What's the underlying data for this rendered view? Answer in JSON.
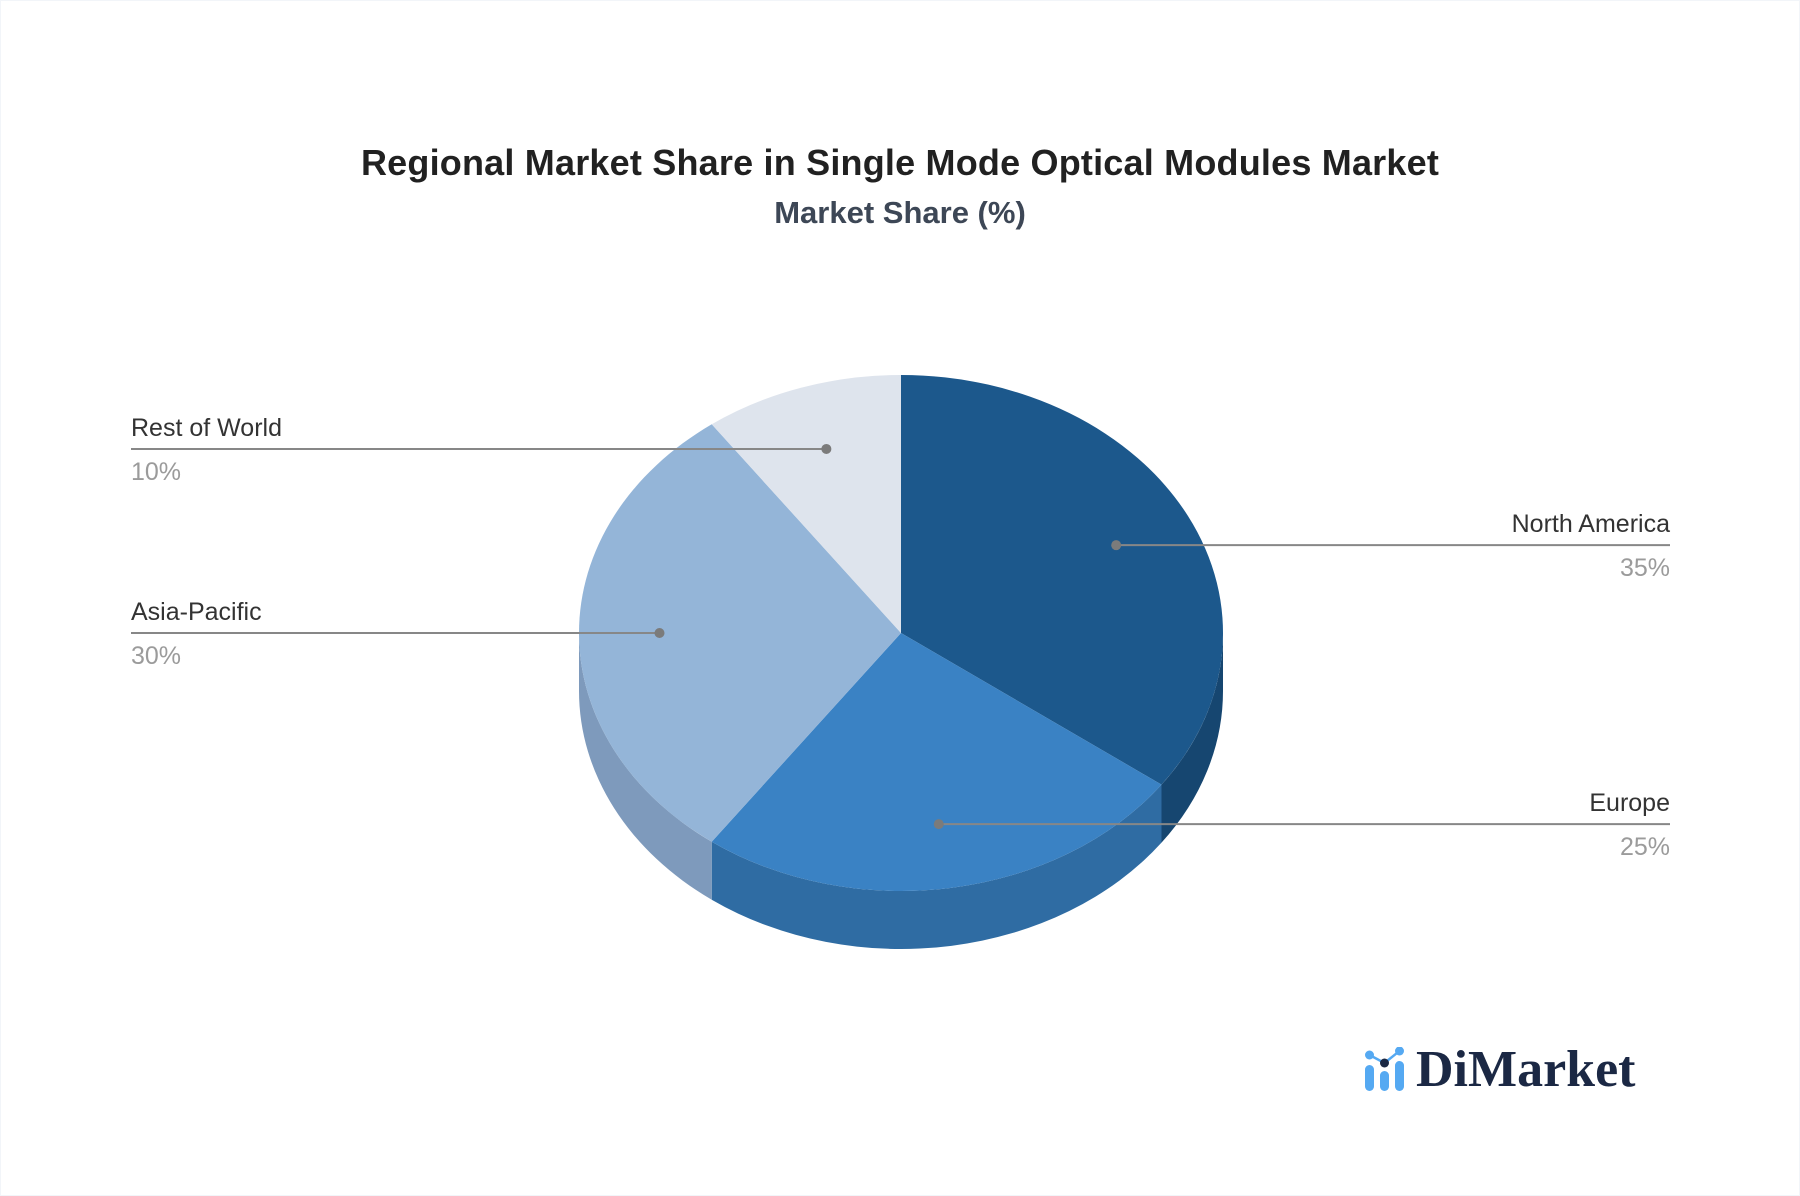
{
  "header": {
    "title": "Regional Market Share in Single Mode Optical Modules Market",
    "subtitle": "Market Share (%)"
  },
  "chart_data": {
    "type": "pie",
    "title": "Regional Market Share in Single Mode Optical Modules Market",
    "subtitle": "Market Share (%)",
    "value_unit": "%",
    "three_d": true,
    "start_angle_deg": 0,
    "clockwise": true,
    "legend_position": "outside-callouts",
    "series": [
      {
        "label": "North America",
        "value": 35,
        "display_value": "35%",
        "color": "#1c588c",
        "side_color": "#164670",
        "callout": "right"
      },
      {
        "label": "Europe",
        "value": 25,
        "display_value": "25%",
        "color": "#3a82c4",
        "side_color": "#2f6ca3",
        "callout": "right"
      },
      {
        "label": "Asia-Pacific",
        "value": 30,
        "display_value": "30%",
        "color": "#94b5d8",
        "side_color": "#7e9abc",
        "callout": "left"
      },
      {
        "label": "Rest of World",
        "value": 10,
        "display_value": "10%",
        "color": "#dee4ed",
        "side_color": "#bcc5d4",
        "callout": "left"
      }
    ]
  },
  "branding": {
    "logo_text": "DiMarket",
    "logo_icon": "bar-line-chart-icon",
    "logo_text_color": "#1b2844",
    "logo_icon_color": "#55a9f2",
    "logo_icon_dot_color": "#1b2844"
  },
  "style_colors": {
    "title": "#212121",
    "subtitle": "#3d4756",
    "callout_label": "#333333",
    "callout_value": "#9b9b9b",
    "leader_line": "#878787",
    "leader_dot": "#7b7b7b",
    "background": "#ffffff"
  }
}
